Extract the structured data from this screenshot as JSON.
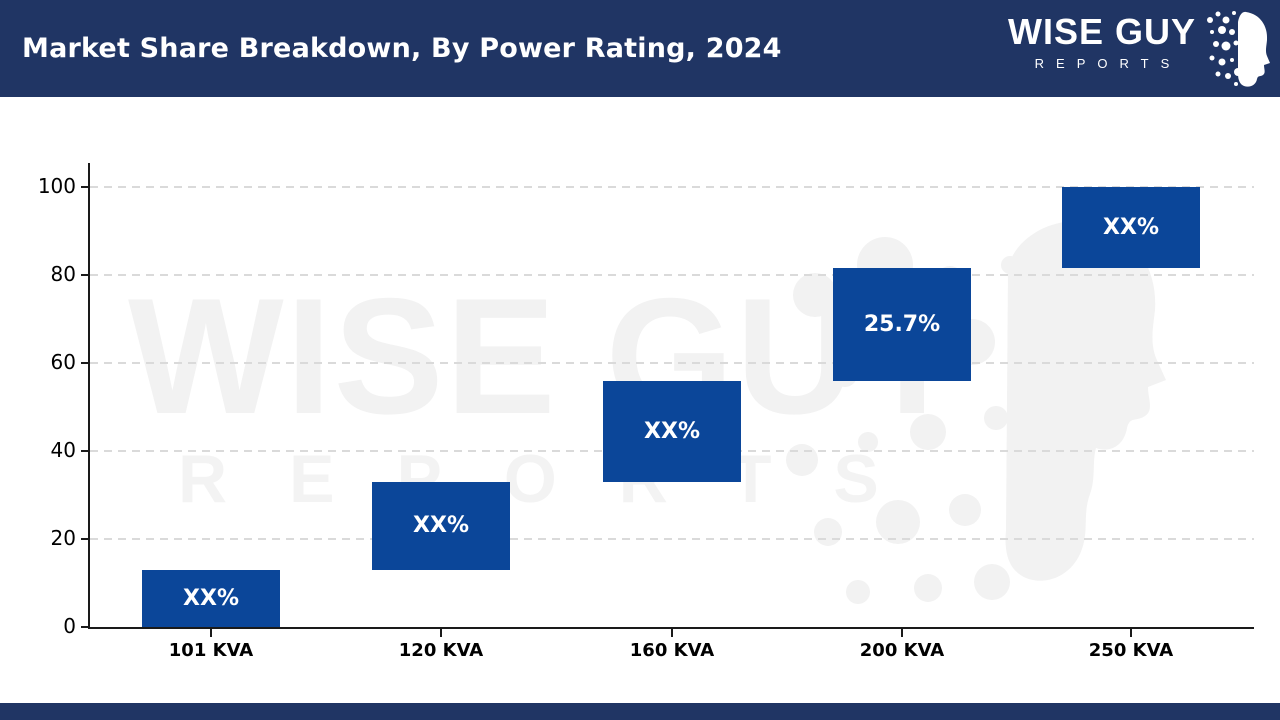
{
  "header": {
    "title": "Market Share Breakdown, By Power Rating, 2024",
    "logo_line1": "WISE GUY",
    "logo_line2": "REPORTS"
  },
  "watermark": {
    "line1": "WISE GUY",
    "line2": "REPORTS"
  },
  "chart_data": {
    "type": "bar",
    "variant": "waterfall",
    "title": "Market Share Breakdown, By Power Rating, 2024",
    "categories": [
      "101 KVA",
      "120 KVA",
      "160 KVA",
      "200 KVA",
      "250 KVA"
    ],
    "bars": [
      {
        "category": "101 KVA",
        "start": 0,
        "end": 13,
        "label": "XX%"
      },
      {
        "category": "120 KVA",
        "start": 13,
        "end": 33,
        "label": "XX%"
      },
      {
        "category": "160 KVA",
        "start": 33,
        "end": 56,
        "label": "XX%"
      },
      {
        "category": "200 KVA",
        "start": 56,
        "end": 81.7,
        "label": "25.7%"
      },
      {
        "category": "250 KVA",
        "start": 81.7,
        "end": 100,
        "label": "XX%"
      }
    ],
    "yticks": [
      0,
      20,
      40,
      60,
      80,
      100
    ],
    "ylim": [
      0,
      105.5
    ],
    "xlabel": "",
    "ylabel": "",
    "legend": "none",
    "grid": "horizontal-dashed",
    "bar_color": "#0b4699",
    "bar_label_color": "#ffffff"
  },
  "colors": {
    "header_bg": "#203564",
    "footer_bg": "#203564",
    "axis": "#1a1a1a",
    "grid": "#dadada",
    "watermark": "#f2f2f2"
  }
}
